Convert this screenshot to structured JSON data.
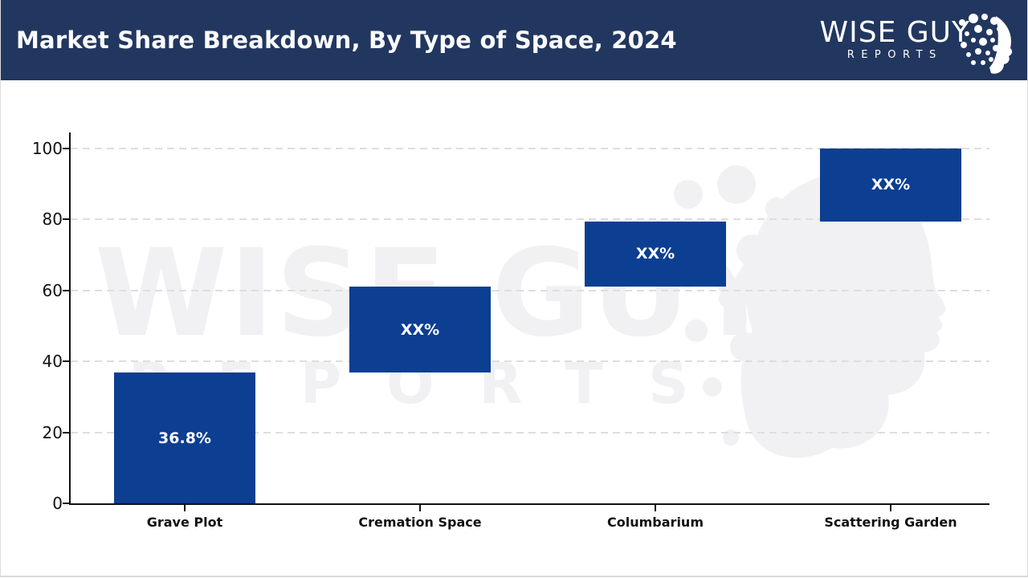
{
  "header": {
    "title": "Market Share Breakdown, By Type of Space, 2024",
    "logo": {
      "line1": "WISE GUY",
      "line2": "REPORTS"
    }
  },
  "watermark": {
    "line1": "WISE GUY",
    "line2": "REPORTS"
  },
  "colors": {
    "header_bg": "#22375f",
    "bar": "#0c3e92",
    "grid": "#dedede",
    "axis": "#111111",
    "bar_label": "#ffffff",
    "watermark": "#f1f1f3"
  },
  "chart_data": {
    "type": "bar",
    "subtype": "floating_waterfall",
    "title": "Market Share Breakdown, By Type of Space, 2024",
    "categories": [
      "Grave Plot",
      "Cremation Space",
      "Columbarium",
      "Scattering Garden"
    ],
    "series": [
      {
        "name": "Market Share (%)",
        "segments": [
          {
            "category": "Grave Plot",
            "start": 0,
            "end": 36.8,
            "label": "36.8%"
          },
          {
            "category": "Cremation Space",
            "start": 36.8,
            "end": 61,
            "label": "XX%"
          },
          {
            "category": "Columbarium",
            "start": 61,
            "end": 79.5,
            "label": "XX%"
          },
          {
            "category": "Scattering Garden",
            "start": 79.5,
            "end": 100,
            "label": "XX%"
          }
        ]
      }
    ],
    "y_ticks": [
      0,
      20,
      40,
      60,
      80,
      100
    ],
    "ylim": [
      0,
      105
    ],
    "xlabel": "",
    "ylabel": "",
    "grid": "horizontal-dashed",
    "legend": "none"
  }
}
